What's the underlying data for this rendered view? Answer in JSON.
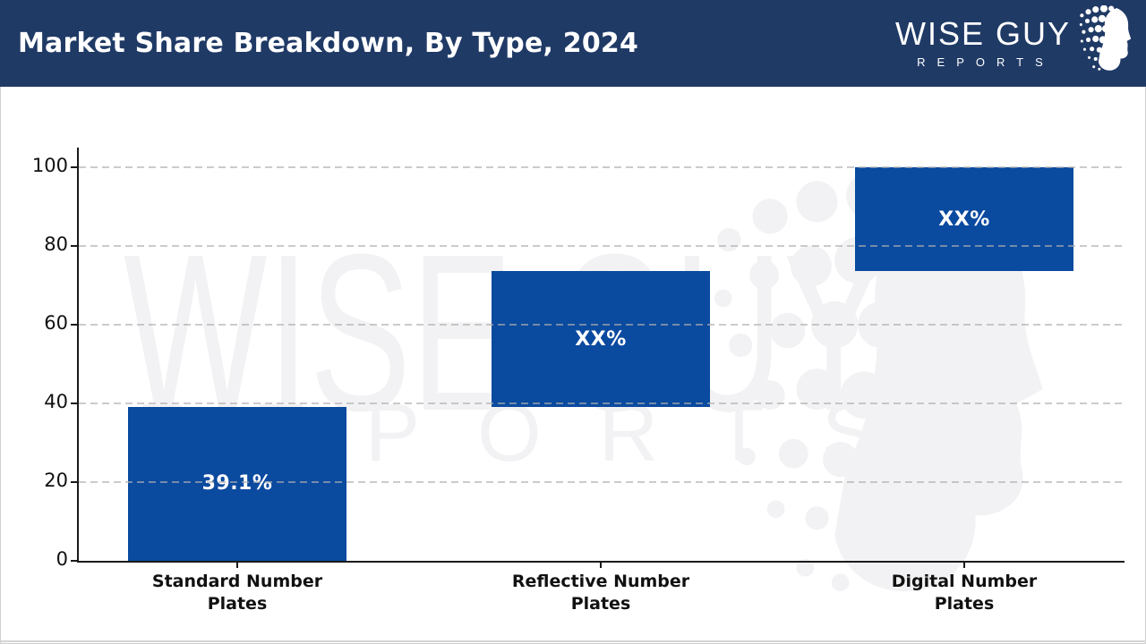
{
  "header": {
    "title": "Market Share Breakdown, By Type, 2024"
  },
  "logo": {
    "line1": "WISE GUY",
    "line2": "REPORTS"
  },
  "watermark": {
    "line1": "WISE GUY",
    "line2": "REPORTS"
  },
  "colors": {
    "header_bg": "#203A66",
    "bar": "#0A4A9F",
    "bar_label": "#FFFFFF",
    "title": "#FFFFFF",
    "watermark": "#F2F2F4",
    "grid": "#CCCCCC",
    "axis": "#1A1A1A"
  },
  "chart_data": {
    "type": "bar",
    "variant": "stacked-waterfall",
    "title": "Market Share Breakdown, By Type, 2024",
    "categories": [
      "Standard Number Plates",
      "Reflective Number Plates",
      "Digital Number Plates"
    ],
    "category_lines": [
      [
        "Standard Number",
        "Plates"
      ],
      [
        "Reflective Number",
        "Plates"
      ],
      [
        "Digital Number",
        "Plates"
      ]
    ],
    "segments": [
      {
        "category": "Standard Number Plates",
        "start": 0,
        "end": 39.1,
        "label": "39.1%"
      },
      {
        "category": "Reflective Number Plates",
        "start": 39.1,
        "end": 73.6,
        "label": "XX%"
      },
      {
        "category": "Digital Number Plates",
        "start": 73.6,
        "end": 100,
        "label": "XX%"
      }
    ],
    "yticks": [
      0,
      20,
      40,
      60,
      80,
      100
    ],
    "ylim": [
      0,
      105
    ],
    "xlabel": "",
    "ylabel": "",
    "grid": "horizontal-dashed",
    "legend": "none"
  }
}
